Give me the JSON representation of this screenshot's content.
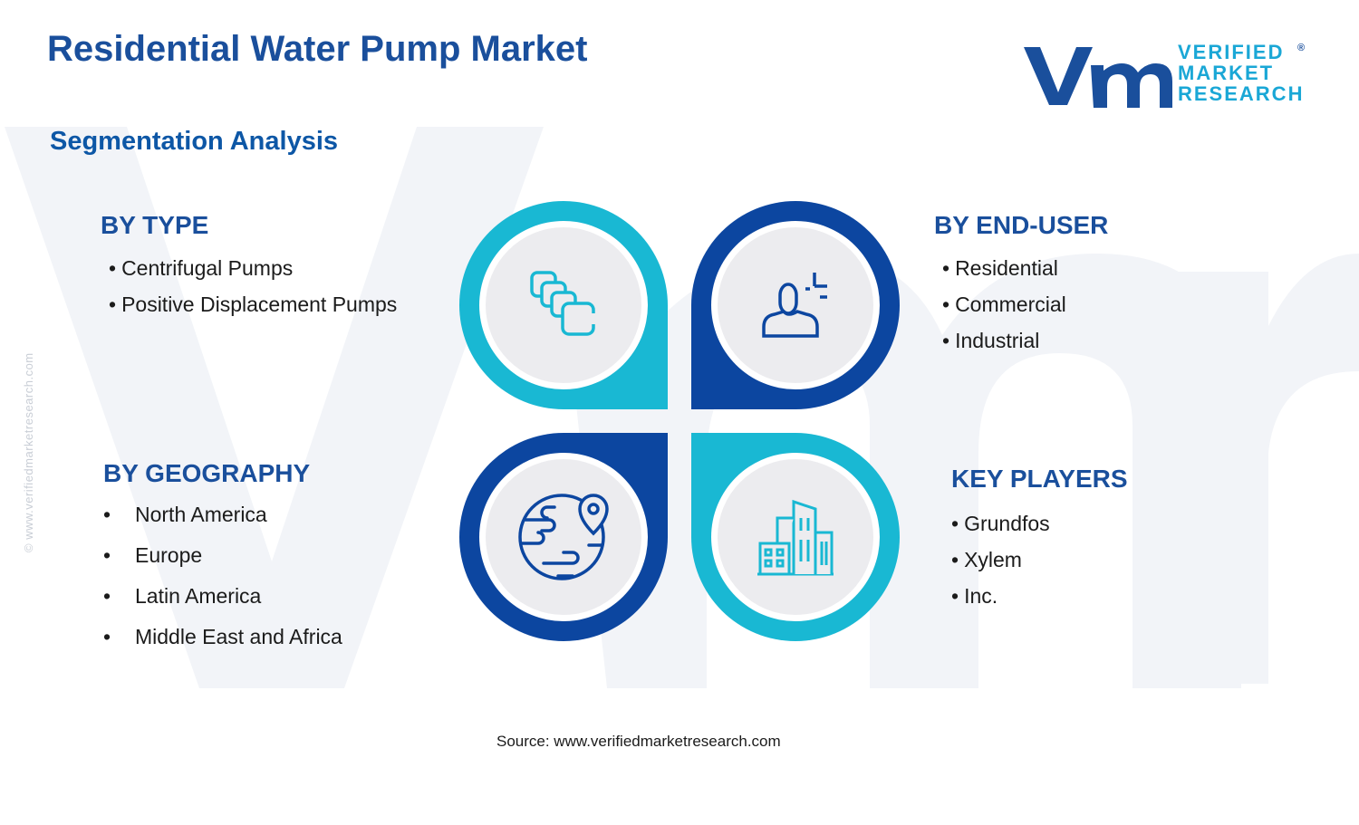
{
  "title": "Residential Water Pump Market",
  "subtitle": "Segmentation Analysis",
  "side_url": "© www.verifiedmarketresearch.com",
  "logo": {
    "lines": [
      "VERIFIED",
      "MARKET",
      "RESEARCH"
    ],
    "registered": "®",
    "mark_color": "#1a4f9c",
    "text_color": "#1aa7d6"
  },
  "segments": {
    "type": {
      "heading": "BY TYPE",
      "items": [
        "Centrifugal Pumps",
        "Positive Displacement Pumps"
      ],
      "icon": "stacked-squares-icon"
    },
    "end_user": {
      "heading": "BY END-USER",
      "items": [
        "Residential",
        "Commercial",
        "Industrial"
      ],
      "icon": "user-icon"
    },
    "geography": {
      "heading": "BY GEOGRAPHY",
      "items": [
        "North America",
        "Europe",
        "Latin America",
        "Middle East and Africa"
      ],
      "icon": "globe-pin-icon"
    },
    "players": {
      "heading": "KEY PLAYERS",
      "items": [
        "Grundfos",
        "Xylem",
        "Inc."
      ],
      "icon": "buildings-icon"
    }
  },
  "bullet": "•",
  "source": "Source: www.verifiedmarketresearch.com",
  "colors": {
    "cyan": "#19b8d3",
    "navy": "#0c46a0",
    "heading": "#1a4f9c",
    "inner": "#ececef"
  }
}
